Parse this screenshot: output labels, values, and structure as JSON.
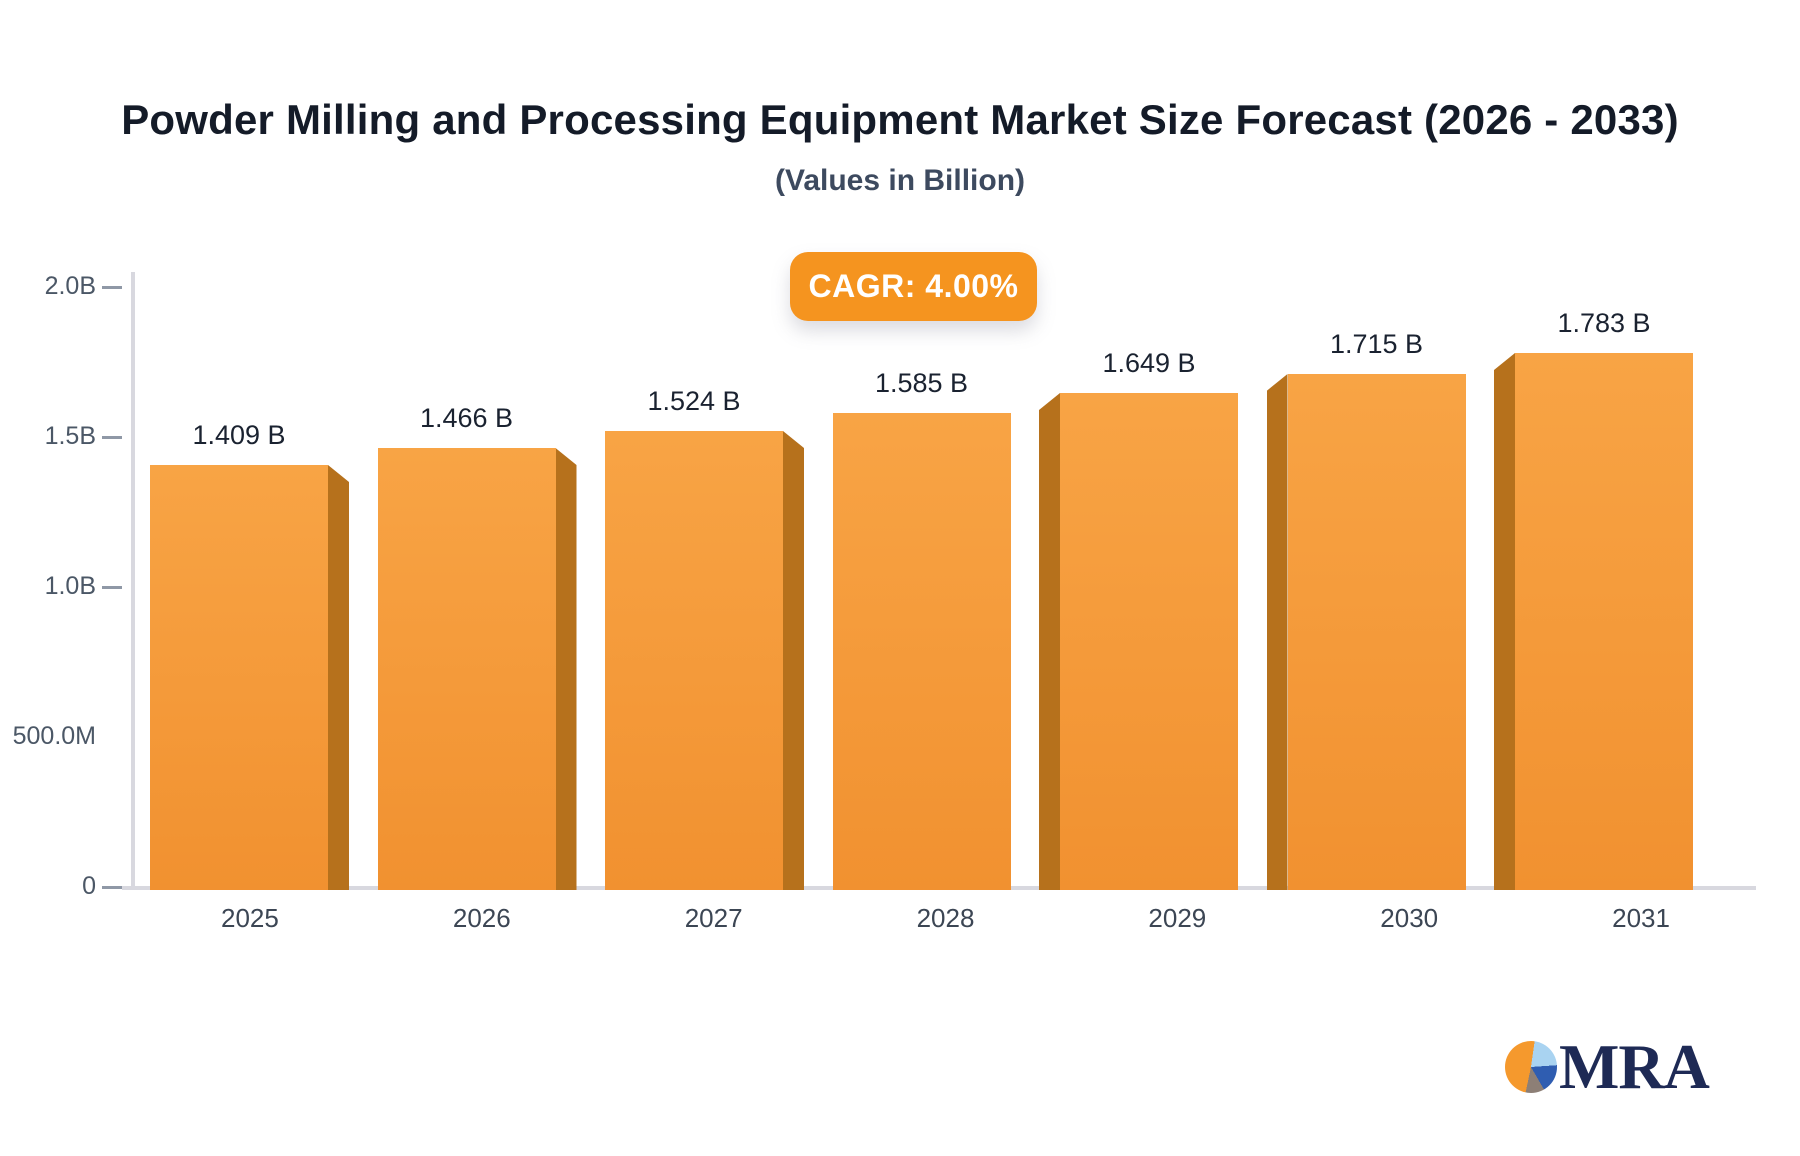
{
  "header": {
    "title": "Powder Milling and Processing Equipment Market Size Forecast (2026 - 2033)",
    "subtitle": "(Values in Billion)",
    "cagr_label": "CAGR: 4.00%"
  },
  "footer": {
    "logo_text": "MRA",
    "logo_icon": "pie-chart-icon"
  },
  "chart_data": {
    "type": "bar",
    "title": "Powder Milling and Processing Equipment Market Size Forecast (2026 - 2033)",
    "subtitle": "(Values in Billion)",
    "cagr": "4.00%",
    "categories": [
      "2025",
      "2026",
      "2027",
      "2028",
      "2029",
      "2030",
      "2031"
    ],
    "values": [
      1.409,
      1.466,
      1.524,
      1.585,
      1.649,
      1.715,
      1.783
    ],
    "bar_labels": [
      "1.409 B",
      "1.466 B",
      "1.524 B",
      "1.585 B",
      "1.649 B",
      "1.715 B",
      "1.783 B"
    ],
    "xlabel": "",
    "ylabel": "",
    "ylim": [
      0,
      2.0
    ],
    "y_ticks": [
      {
        "label": "2.0B",
        "value": 2.0,
        "dash": true
      },
      {
        "label": "1.5B",
        "value": 1.5,
        "dash": true
      },
      {
        "label": "1.0B",
        "value": 1.0,
        "dash": true
      },
      {
        "label": "500.0M",
        "value": 0.5,
        "dash": false
      },
      {
        "label": "0",
        "value": 0.0,
        "dash": true
      }
    ],
    "legend_position": "none",
    "grid": false,
    "colors": {
      "bar_front_top": "#f8a445",
      "bar_front_bottom": "#f19130",
      "bar_side": "#b6711c",
      "badge": "#f5941f",
      "axis_line": "#d8d8df",
      "tick_dash": "#8f98a6"
    }
  }
}
